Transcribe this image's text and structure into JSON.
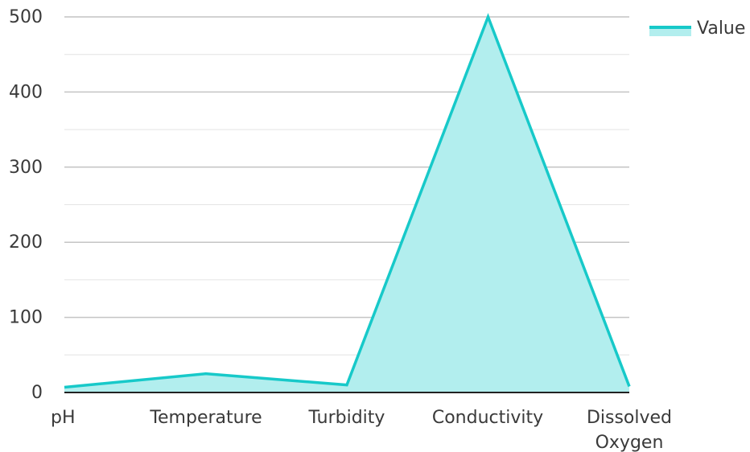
{
  "chart_data": {
    "type": "area",
    "title": "",
    "xlabel": "",
    "ylabel": "",
    "categories": [
      "pH",
      "Temperature",
      "Turbidity",
      "Conductivity",
      "Dissolved Oxygen"
    ],
    "category_label_lines": [
      [
        "pH"
      ],
      [
        "Temperature"
      ],
      [
        "Turbidity"
      ],
      [
        "Conductivity"
      ],
      [
        "Dissolved",
        "Oxygen"
      ]
    ],
    "series": [
      {
        "name": "Value",
        "values": [
          7,
          25,
          10,
          500,
          8
        ]
      }
    ],
    "ylim": [
      0,
      500
    ],
    "yticks": [
      0,
      100,
      200,
      300,
      400,
      500
    ],
    "grid": true,
    "legend_position": "top-right",
    "colors": {
      "line": "#17c9c9",
      "fill": "#b2eeee",
      "grid_major": "#c4c4c4",
      "grid_minor": "#e4e4e4",
      "axis": "#222222"
    }
  }
}
